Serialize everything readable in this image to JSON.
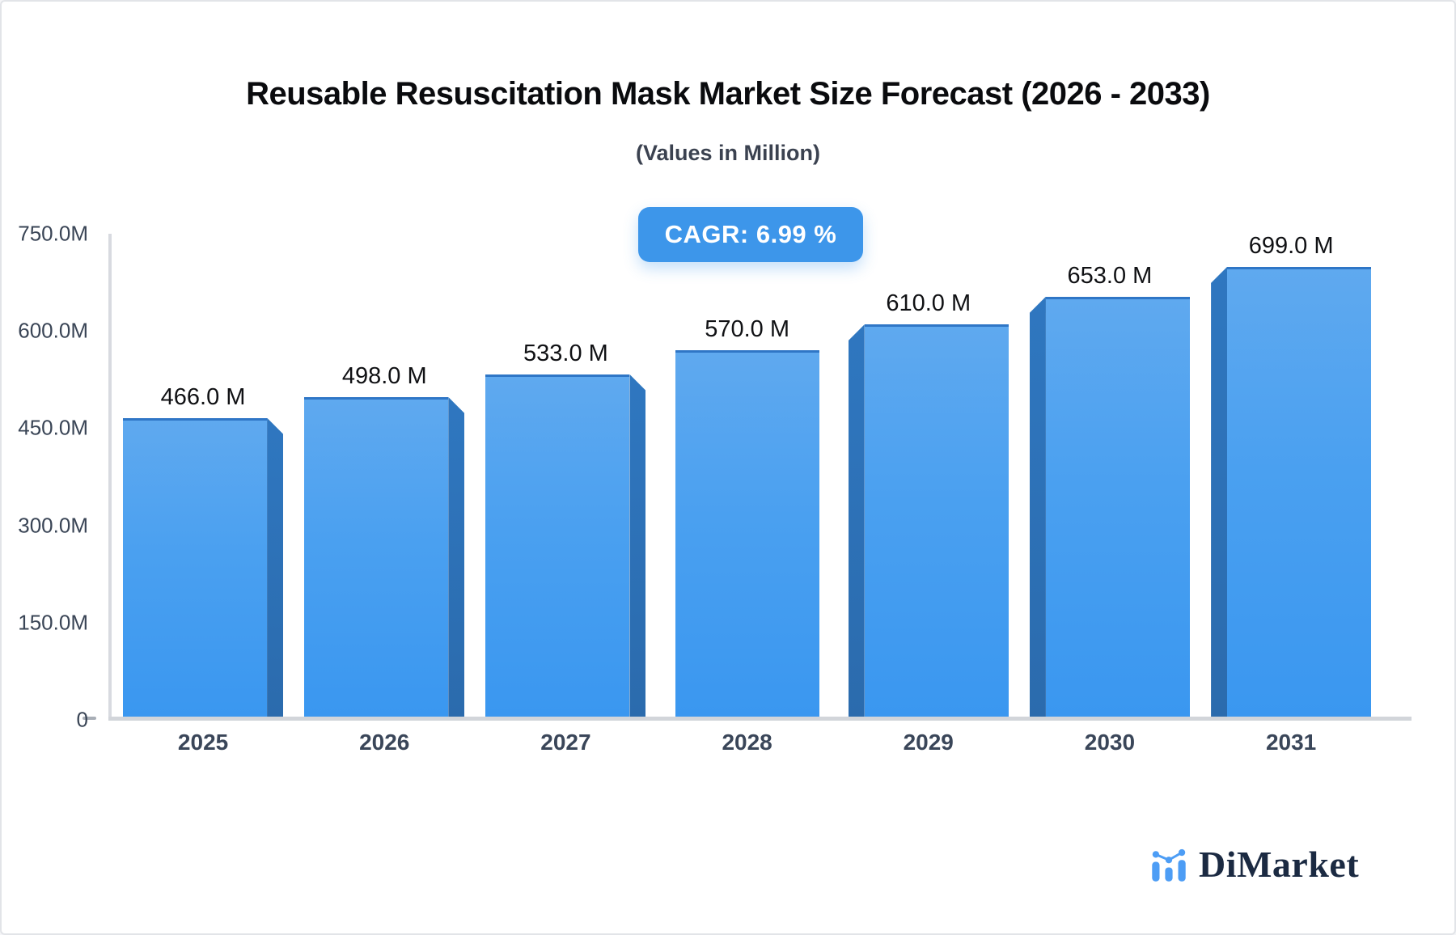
{
  "header": {
    "title": "Reusable Resuscitation Mask Market Size Forecast (2026 - 2033)",
    "subtitle": "(Values in Million)"
  },
  "badge": {
    "label": "CAGR: 6.99 %"
  },
  "chart_data": {
    "type": "bar",
    "title": "Reusable Resuscitation Mask Market Size Forecast (2026 - 2033)",
    "subtitle": "(Values in Million)",
    "unit": "Million",
    "categories": [
      "2025",
      "2026",
      "2027",
      "2028",
      "2029",
      "2030",
      "2031"
    ],
    "values": [
      466.0,
      498.0,
      533.0,
      570.0,
      610.0,
      653.0,
      699.0
    ],
    "value_labels": [
      "466.0 M",
      "498.0 M",
      "533.0 M",
      "570.0 M",
      "610.0 M",
      "653.0 M",
      "699.0 M"
    ],
    "cagr": "6.99 %",
    "xlabel": "",
    "ylabel": "",
    "ylim": [
      0,
      750
    ],
    "yticks": [
      {
        "label": "750.0M",
        "value": 750
      },
      {
        "label": "600.0M",
        "value": 600
      },
      {
        "label": "450.0M",
        "value": 450
      },
      {
        "label": "300.0M",
        "value": 300
      },
      {
        "label": "150.0M",
        "value": 150
      },
      {
        "label": "0",
        "value": 0
      }
    ],
    "grid": false,
    "legend": "none",
    "style": "3d-perspective-bars",
    "colors": {
      "bar_fill_top": "#5fa9ef",
      "bar_fill_bottom": "#3a97f0",
      "bar_top_edge": "#2f76c6",
      "bar_side_face": "#2e72b8",
      "axis_line": "#d5d8dd",
      "tick_label": "#3a4556",
      "value_label": "#101114",
      "badge_background": "#3d96ea",
      "badge_text": "#ffffff"
    }
  },
  "branding": {
    "logo_text": "DiMarket",
    "logo_icon": "mini-bar-chart-icon",
    "logo_text_color": "#1b2a42",
    "logo_icon_color": "#4d9df5"
  }
}
